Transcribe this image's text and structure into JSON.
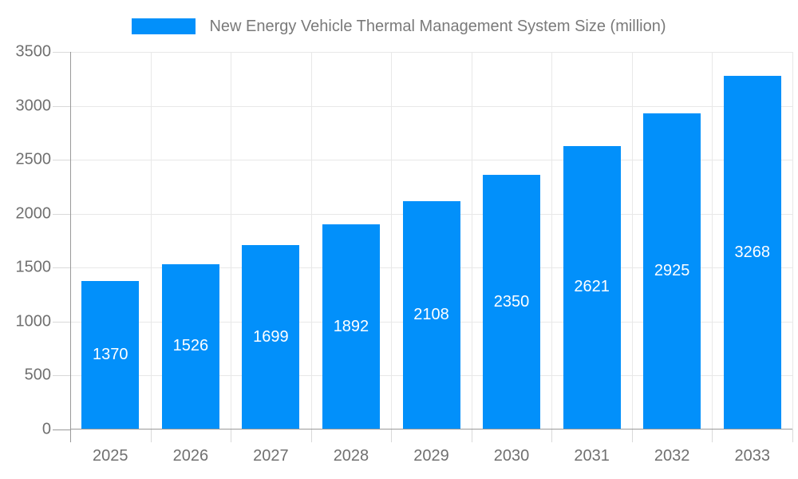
{
  "legend": {
    "label": "New Energy Vehicle Thermal Management System Size (million)"
  },
  "chart_data": {
    "type": "bar",
    "title": "",
    "xlabel": "",
    "ylabel": "",
    "categories": [
      "2025",
      "2026",
      "2027",
      "2028",
      "2029",
      "2030",
      "2031",
      "2032",
      "2033"
    ],
    "values": [
      1370,
      1526,
      1699,
      1892,
      2108,
      2350,
      2621,
      2925,
      3268
    ],
    "series_name": "New Energy Vehicle Thermal Management System Size (million)",
    "ylim": [
      0,
      3500
    ],
    "ytick_step": 500,
    "yticks": [
      0,
      500,
      1000,
      1500,
      2000,
      2500,
      3000,
      3500
    ],
    "grid": true,
    "legend_position": "top",
    "value_labels": "centered-inside-bars",
    "colors": {
      "bar": "#0290fa",
      "bar_value_label": "#ffffff",
      "grid_line": "#e8e8e8",
      "axis_line": "#999999",
      "tick_mark": "#d9d9d9",
      "axis_text": "#707070",
      "legend_text": "#7a7a7a",
      "background": "#ffffff"
    }
  }
}
